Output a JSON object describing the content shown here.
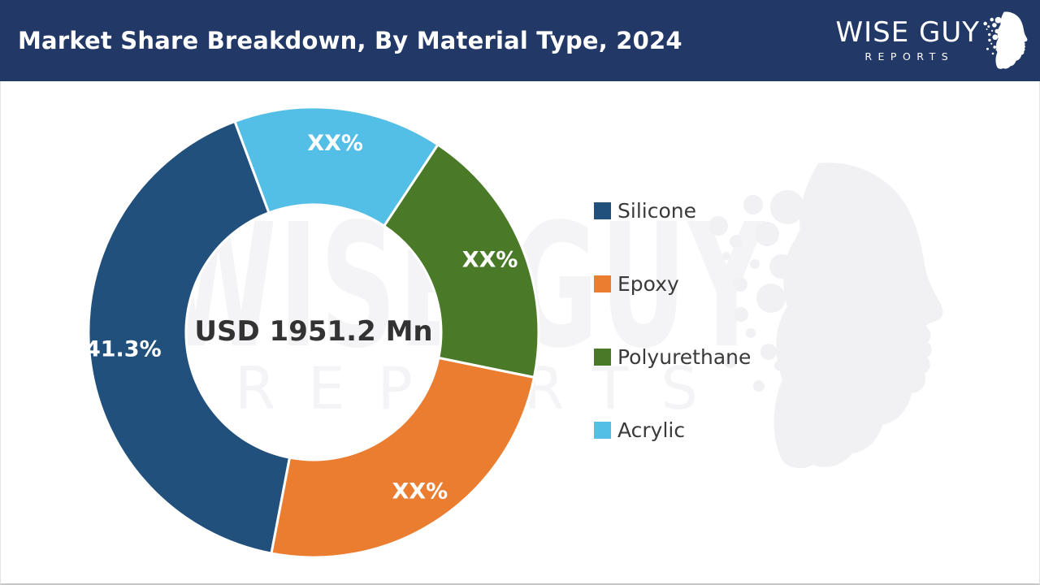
{
  "header": {
    "title": "Market Share Breakdown, By Material Type, 2024",
    "logo": {
      "brand_top": "WISE GUY",
      "brand_bottom": "REPORTS"
    }
  },
  "watermark": {
    "text_top": "WISE GUY",
    "text_bottom": "REPORTS"
  },
  "chart_data": {
    "type": "pie",
    "subtype": "donut",
    "title": "Market Share Breakdown, By Material Type, 2024",
    "center_label": "USD 1951.2 Mn",
    "start_angle_deg": 110.5,
    "direction": "counterclockwise",
    "legend_position": "right",
    "inner_radius_ratio": 0.567,
    "segments": [
      {
        "label": "Silicone",
        "display_pct": "41.3%",
        "value_pct_est": 41.3,
        "color": "#22507C"
      },
      {
        "label": "Epoxy",
        "display_pct": "XX%",
        "value_pct_est": 24.8,
        "color": "#EB7D31"
      },
      {
        "label": "Polyurethane",
        "display_pct": "XX%",
        "value_pct_est": 18.9,
        "color": "#4A7A28"
      },
      {
        "label": "Acrylic",
        "display_pct": "XX%",
        "value_pct_est": 15.0,
        "color": "#53BEE6"
      }
    ]
  },
  "colors": {
    "header_bg": "#223866",
    "canvas_bg": "#FFFFFF",
    "title_text": "#FFFFFF",
    "center_text": "#333333",
    "legend_text": "#3A3A3A",
    "slice_divider": "#FFFFFF",
    "slice_label_text": "#FFFFFF",
    "watermark_shape": "#F1F1F3",
    "watermark_text": "rgba(45,45,70,0.05)"
  }
}
